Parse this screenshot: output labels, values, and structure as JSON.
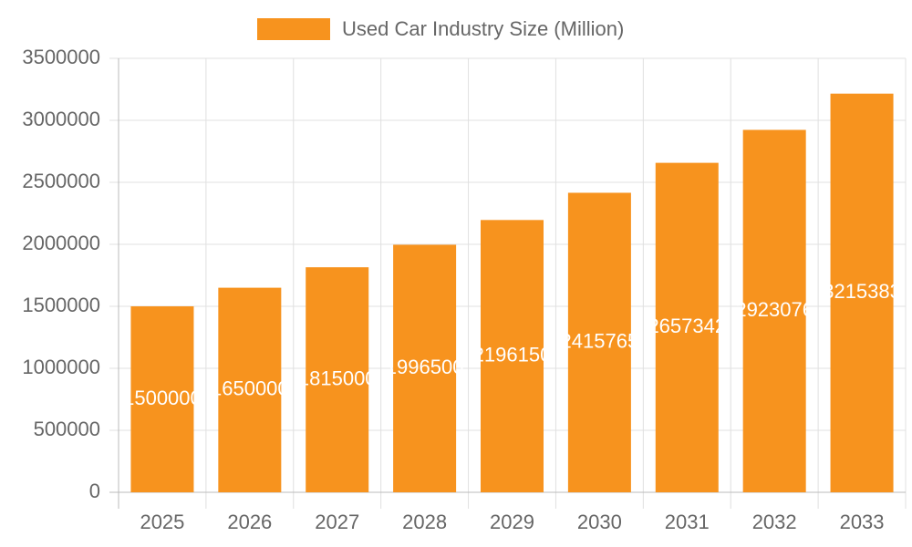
{
  "chart_data": {
    "type": "bar",
    "categories": [
      "2025",
      "2026",
      "2027",
      "2028",
      "2029",
      "2030",
      "2031",
      "2032",
      "2033"
    ],
    "series": [
      {
        "name": "Used Car Industry Size (Million)",
        "color": "#f7931e",
        "values": [
          1500000,
          1650000,
          1815000,
          1996500,
          2196150,
          2415765,
          2657342,
          2923076,
          3215383
        ]
      }
    ],
    "ylim": [
      0,
      3500000
    ],
    "yticks": [
      0,
      500000,
      1000000,
      1500000,
      2000000,
      2500000,
      3000000,
      3500000
    ],
    "grid": true,
    "legend": "top"
  }
}
